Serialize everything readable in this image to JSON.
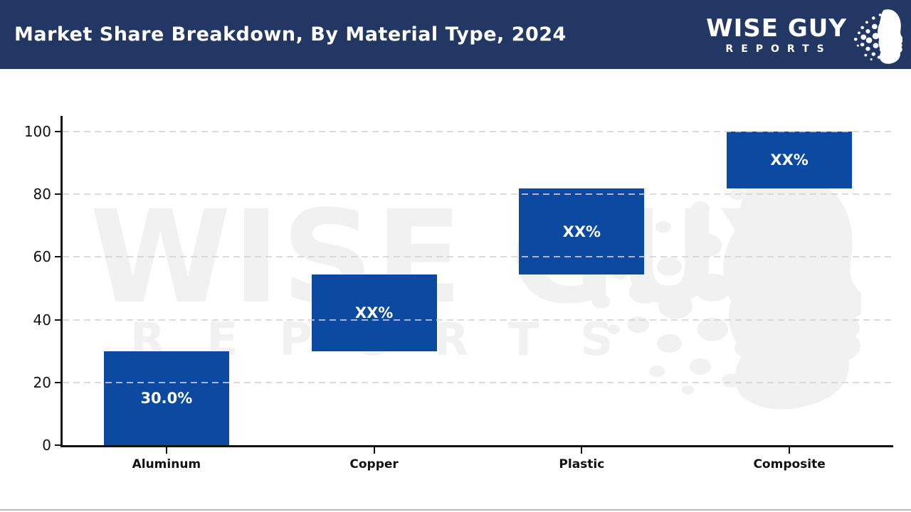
{
  "header": {
    "title": "Market Share Breakdown, By Material Type, 2024"
  },
  "logo": {
    "line1": "WISE GUY",
    "line2": "REPORTS"
  },
  "watermark": {
    "line1": "WISE GUY",
    "line2": "REPORTS"
  },
  "colors": {
    "header_bg": "#223763",
    "title_color": "#ffffff",
    "bar_color": "#0b4aa0",
    "bar_label_color": "#ffffff",
    "gridline_color": "#d9d9d9",
    "axis_color": "#111111",
    "watermark_color": "#f1f1f1",
    "background": "#ffffff"
  },
  "chart_data": {
    "type": "bar",
    "subtype": "waterfall",
    "title": "Market Share Breakdown, By Material Type, 2024",
    "xlabel": "",
    "ylabel": "",
    "categories": [
      "Aluminum",
      "Copper",
      "Plastic",
      "Composite"
    ],
    "segments": [
      {
        "category": "Aluminum",
        "start": 0,
        "end": 30,
        "value": 30,
        "label": "30.0%"
      },
      {
        "category": "Copper",
        "start": 30,
        "end": 54.5,
        "value": 24.5,
        "label": "XX%"
      },
      {
        "category": "Plastic",
        "start": 54.5,
        "end": 81.8,
        "value": 27.3,
        "label": "XX%"
      },
      {
        "category": "Composite",
        "start": 81.8,
        "end": 100,
        "value": 18.2,
        "label": "XX%"
      }
    ],
    "yticks": [
      0,
      20,
      40,
      60,
      80,
      100
    ],
    "ylim": [
      0,
      105
    ],
    "grid": {
      "axis": "y",
      "style": "dashed"
    },
    "legend": "none",
    "bar_color": "#0b4aa0"
  }
}
